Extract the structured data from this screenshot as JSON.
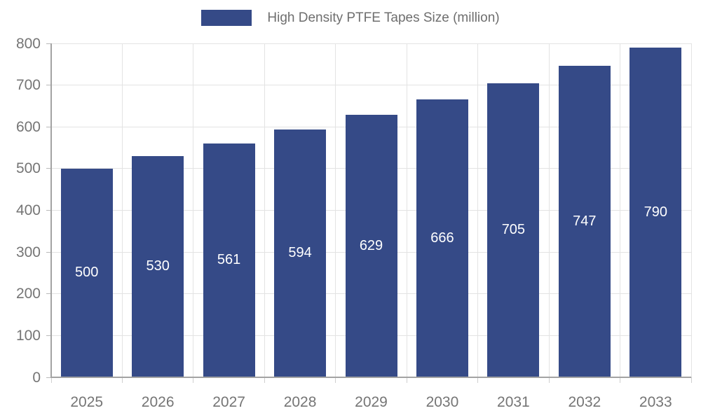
{
  "chart_data": {
    "type": "bar",
    "title": "High Density PTFE Tapes Size (million)",
    "legend_entries": [
      "High Density PTFE Tapes Size (million)"
    ],
    "legend_position": "top-center",
    "categories": [
      "2025",
      "2026",
      "2027",
      "2028",
      "2029",
      "2030",
      "2031",
      "2032",
      "2033"
    ],
    "values": [
      500,
      530,
      561,
      594,
      629,
      666,
      705,
      747,
      790
    ],
    "xlabel": "",
    "ylabel": "",
    "ylim": [
      0,
      800
    ],
    "ytick_step": 100,
    "ytick_labels": [
      "0",
      "100",
      "200",
      "300",
      "400",
      "500",
      "600",
      "700",
      "800"
    ],
    "grid": true,
    "bar_labels_shown": true,
    "colors": {
      "bar": "#354a87",
      "bar_value_text": "#ffffff",
      "axis_text": "#757575",
      "legend_text": "#6e6e6e",
      "gridline": "#e3e3e3",
      "axis_line": "#a3a3a3"
    }
  }
}
